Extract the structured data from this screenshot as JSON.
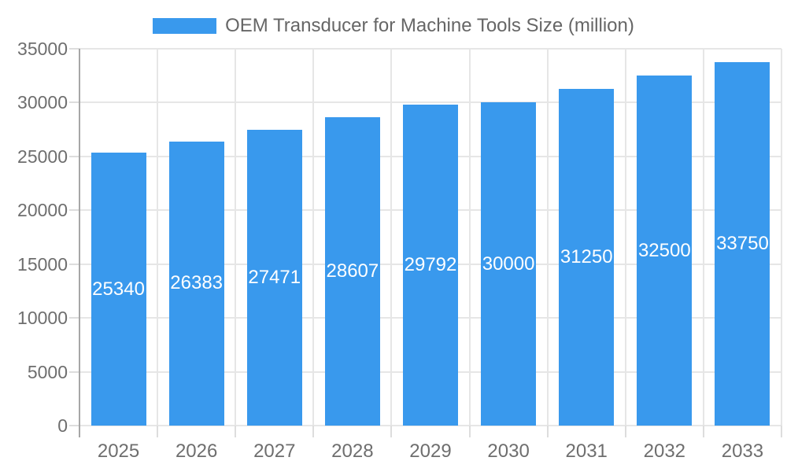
{
  "chart_data": {
    "type": "bar",
    "title": "OEM Transducer for Machine Tools Size (million)",
    "legend": {
      "label": "OEM Transducer for Machine Tools Size (million)",
      "position": "top"
    },
    "categories": [
      "2025",
      "2026",
      "2027",
      "2028",
      "2029",
      "2030",
      "2031",
      "2032",
      "2033"
    ],
    "series": [
      {
        "name": "OEM Transducer for Machine Tools Size (million)",
        "values": [
          25340,
          26383,
          27471,
          28607,
          29792,
          30000,
          31250,
          32500,
          33750
        ]
      }
    ],
    "bar_value_labels": [
      "25340",
      "26383",
      "27471",
      "28607",
      "29792",
      "30000",
      "31250",
      "32500",
      "33750"
    ],
    "xlabel": "",
    "ylabel": "",
    "ylim": [
      0,
      35000
    ],
    "yticks": [
      0,
      5000,
      10000,
      15000,
      20000,
      25000,
      30000,
      35000
    ],
    "ytick_labels": [
      "0",
      "5000",
      "10000",
      "15000",
      "20000",
      "25000",
      "30000",
      "35000"
    ],
    "grid": true,
    "grid_vertical": true,
    "legend_position": "top",
    "colors": {
      "bar": "#3999ED",
      "bar_label_text": "#ffffff",
      "tick_label_text": "#6e6e6e",
      "legend_text": "#666666",
      "grid_line": "#e6e6e6",
      "tick_line": "#dddddd",
      "axis_line": "#a6a6a6",
      "background": "#ffffff"
    }
  }
}
